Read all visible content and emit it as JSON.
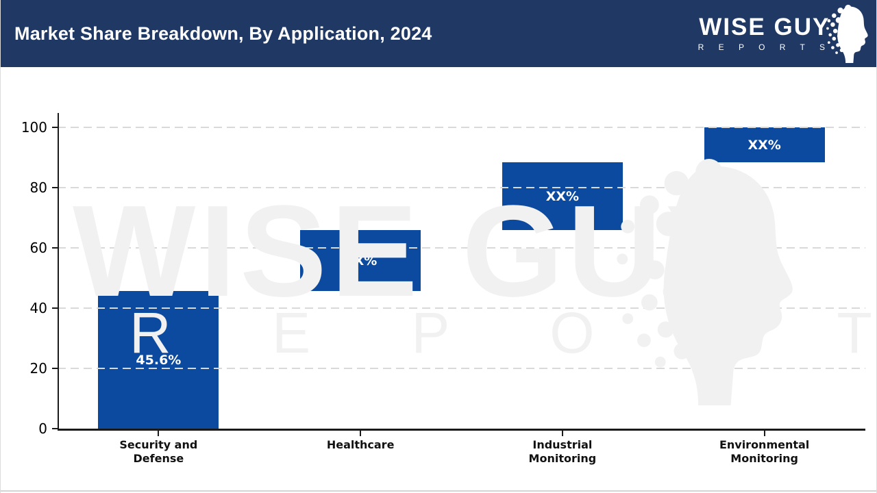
{
  "header": {
    "title": "Market Share Breakdown, By Application, 2024",
    "logo": {
      "wordmark": "WISE GUY",
      "subtitle": "R E P O R T S"
    }
  },
  "watermark": {
    "line1": "WISE GUY",
    "line2": "R E P O R T S"
  },
  "colors": {
    "header_bg": "#1f3864",
    "bar": "#0b4a9f",
    "bar_label_text": "#ffffff",
    "axis": "#1a1a1a",
    "grid": "#d9d9d9",
    "watermark": "#f1f1f1",
    "title_text": "#ffffff"
  },
  "chart_data": {
    "type": "bar",
    "subtype": "waterfall",
    "title": "Market Share Breakdown, By Application, 2024",
    "orientation": "vertical",
    "categories": [
      "Security and Defense",
      "Healthcare",
      "Industrial Monitoring",
      "Environmental Monitoring"
    ],
    "category_label_lines": [
      [
        "Security and",
        "Defense"
      ],
      [
        "Healthcare"
      ],
      [
        "Industrial",
        "Monitoring"
      ],
      [
        "Environmental",
        "Monitoring"
      ]
    ],
    "segments": [
      {
        "category": "Security and Defense",
        "start": 0,
        "end": 45.6,
        "label": "45.6%"
      },
      {
        "category": "Healthcare",
        "start": 45.6,
        "end": 65.8,
        "label": "XX%"
      },
      {
        "category": "Industrial Monitoring",
        "start": 65.8,
        "end": 88.4,
        "label": "XX%"
      },
      {
        "category": "Environmental Monitoring",
        "start": 88.4,
        "end": 100,
        "label": "XX%"
      }
    ],
    "y_axis": {
      "min": 0,
      "max": 100,
      "ticks": [
        0,
        20,
        40,
        60,
        80,
        100
      ]
    },
    "xlabel": "",
    "ylabel": "",
    "grid": "horizontal-dashed",
    "legend": null
  }
}
